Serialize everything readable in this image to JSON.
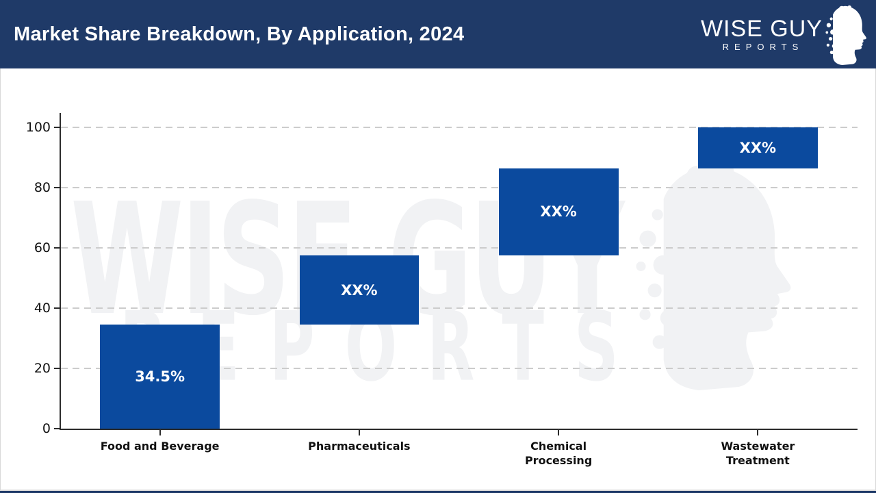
{
  "header": {
    "title": "Market Share Breakdown, By Application, 2024",
    "logo": {
      "line1": "WISE GUY",
      "line2": "REPORTS",
      "icon": "face-profile-dots"
    }
  },
  "watermark": {
    "line1": "WISE GUY",
    "line2": "REPORTS",
    "icon": "face-profile-dots"
  },
  "colors": {
    "header_bg": "#1f3a68",
    "bar": "#0b4a9e",
    "grid": "#cccccc",
    "axis": "#2b2b2b",
    "watermark": "#f1f2f4",
    "bar_label": "#ffffff"
  },
  "chart_data": {
    "type": "bar",
    "subtype": "waterfall",
    "title": "Market Share Breakdown, By Application, 2024",
    "categories": [
      "Food and Beverage",
      "Pharmaceuticals",
      "Chemical Processing",
      "Wastewater Treatment"
    ],
    "x_tick_labels": [
      "Food and Beverage",
      "Pharmaceuticals",
      "Chemical\nProcessing",
      "Wastewater\nTreatment"
    ],
    "segments": [
      {
        "category": "Food and Beverage",
        "start": 0,
        "end": 34.5,
        "label": "34.5%"
      },
      {
        "category": "Pharmaceuticals",
        "start": 34.5,
        "end": 57.5,
        "label": "XX%"
      },
      {
        "category": "Chemical Processing",
        "start": 57.5,
        "end": 86.4,
        "label": "XX%"
      },
      {
        "category": "Wastewater Treatment",
        "start": 86.4,
        "end": 100,
        "label": "XX%"
      }
    ],
    "y_ticks": [
      0,
      20,
      40,
      60,
      80,
      100
    ],
    "ylim": [
      0,
      105
    ],
    "xlabel": "",
    "ylabel": "",
    "grid": "dashed-horizontal",
    "legend": "none"
  }
}
